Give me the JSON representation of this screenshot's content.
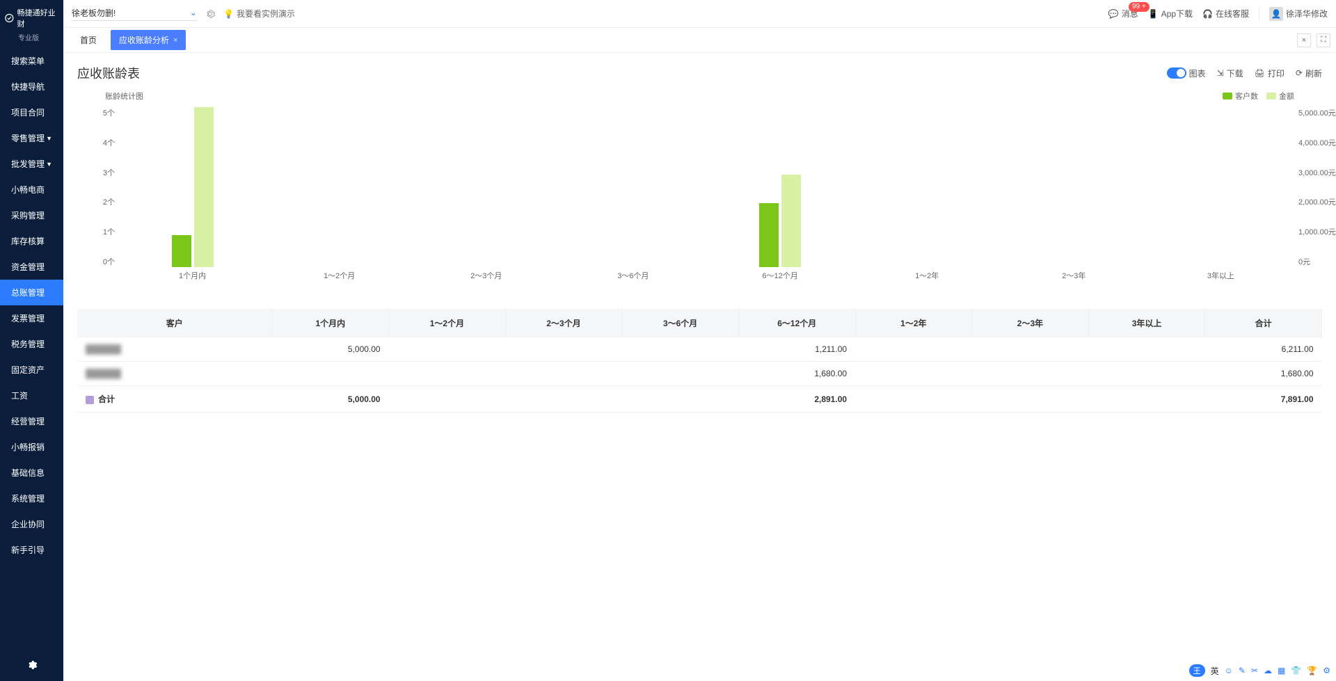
{
  "brand": {
    "name": "畅捷通好业财",
    "edition": "专业版"
  },
  "topbar": {
    "org": "徐老板勿删!",
    "demo": "我要看实例演示",
    "msg": "消息",
    "msg_badge": "99 +",
    "app": "App下载",
    "service": "在线客服",
    "user": "徐泽华修改"
  },
  "sidebar": {
    "items": [
      {
        "label": "搜索菜单",
        "expand": false
      },
      {
        "label": "快捷导航",
        "expand": false
      },
      {
        "label": "项目合同",
        "expand": false
      },
      {
        "label": "零售管理",
        "expand": true
      },
      {
        "label": "批发管理",
        "expand": true
      },
      {
        "label": "小畅电商",
        "expand": false
      },
      {
        "label": "采购管理",
        "expand": false
      },
      {
        "label": "库存核算",
        "expand": false
      },
      {
        "label": "资金管理",
        "expand": false
      },
      {
        "label": "总账管理",
        "expand": false,
        "active": true
      },
      {
        "label": "发票管理",
        "expand": false
      },
      {
        "label": "税务管理",
        "expand": false
      },
      {
        "label": "固定资产",
        "expand": false
      },
      {
        "label": "工资",
        "expand": false
      },
      {
        "label": "经营管理",
        "expand": false
      },
      {
        "label": "小畅报销",
        "expand": false
      },
      {
        "label": "基础信息",
        "expand": false
      },
      {
        "label": "系统管理",
        "expand": false
      },
      {
        "label": "企业协同",
        "expand": false
      },
      {
        "label": "新手引导",
        "expand": false
      }
    ]
  },
  "tabs": {
    "home": "首页",
    "active": "应收账龄分析"
  },
  "page": {
    "title": "应收账龄表",
    "actions": {
      "chart": "图表",
      "download": "下载",
      "print": "打印",
      "refresh": "刷新"
    }
  },
  "chart": {
    "title": "账龄统计图",
    "legend": {
      "customers": "客户数",
      "amount": "金额"
    },
    "colors": {
      "customers": "#7cc61a",
      "amount": "#d8f0a3",
      "grid": "#ffffff",
      "text": "#666666"
    },
    "y_left": {
      "max": 5,
      "step": 1,
      "suffix": "个",
      "ticks": [
        "5个",
        "4个",
        "3个",
        "2个",
        "1个",
        "0个"
      ]
    },
    "y_right": {
      "max": 5000,
      "step": 1000,
      "suffix": "元",
      "ticks": [
        "5,000.00元",
        "4,000.00元",
        "3,000.00元",
        "2,000.00元",
        "1,000.00元",
        "0元"
      ]
    },
    "categories": [
      "1个月内",
      "1～2个月",
      "2～3个月",
      "3～6个月",
      "6～12个月",
      "1～2年",
      "2～3年",
      "3年以上"
    ],
    "series_customers": [
      1,
      0,
      0,
      0,
      2,
      0,
      0,
      0
    ],
    "series_amount": [
      5000,
      0,
      0,
      0,
      2891,
      0,
      0,
      0
    ]
  },
  "table": {
    "columns": [
      "客户",
      "1个月内",
      "1～2个月",
      "2～3个月",
      "3～6个月",
      "6～12个月",
      "1～2年",
      "2～3年",
      "3年以上",
      "合计"
    ],
    "rows": [
      {
        "customer": "██████",
        "cells": [
          "5,000.00",
          "",
          "",
          "",
          "1,211.00",
          "",
          "",
          "",
          "6,211.00"
        ]
      },
      {
        "customer": "██████",
        "cells": [
          "",
          "",
          "",
          "",
          "1,680.00",
          "",
          "",
          "",
          "1,680.00"
        ]
      }
    ],
    "total": {
      "label": "合计",
      "cells": [
        "5,000.00",
        "",
        "",
        "",
        "2,891.00",
        "",
        "",
        "",
        "7,891.00"
      ]
    }
  },
  "dock": {
    "ime": "英"
  }
}
